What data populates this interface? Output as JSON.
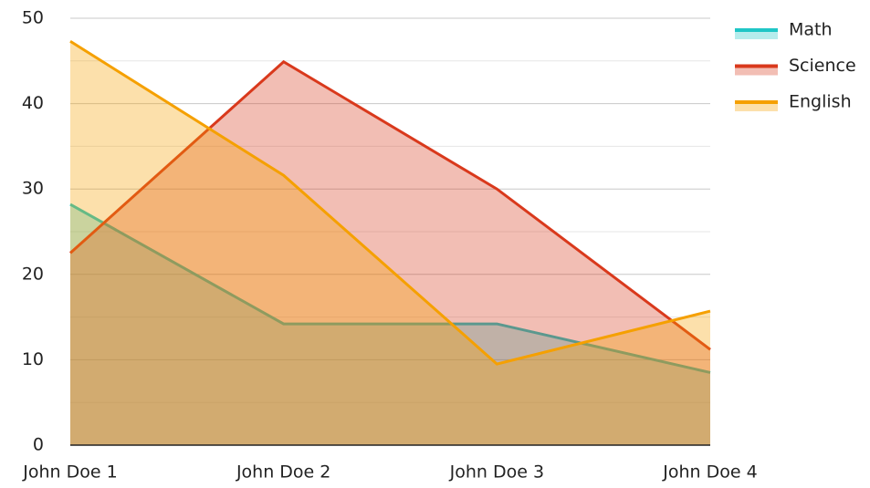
{
  "chart_data": {
    "type": "area",
    "categories": [
      "John Doe 1",
      "John Doe 2",
      "John Doe 3",
      "John Doe 4"
    ],
    "series": [
      {
        "name": "Math",
        "color": "#1fc6c6",
        "values": [
          28.2,
          14.2,
          14.2,
          8.5
        ]
      },
      {
        "name": "Science",
        "color": "#d9391c",
        "values": [
          22.5,
          44.9,
          30,
          11.2
        ]
      },
      {
        "name": "English",
        "color": "#f5a000",
        "values": [
          47.3,
          31.6,
          9.5,
          15.7
        ]
      }
    ],
    "ylim": [
      0,
      50
    ],
    "yticks": [
      0,
      10,
      20,
      30,
      40,
      50
    ],
    "minor_yticks": [
      5,
      15,
      25,
      35,
      45
    ],
    "grid": true,
    "legend": "right"
  }
}
